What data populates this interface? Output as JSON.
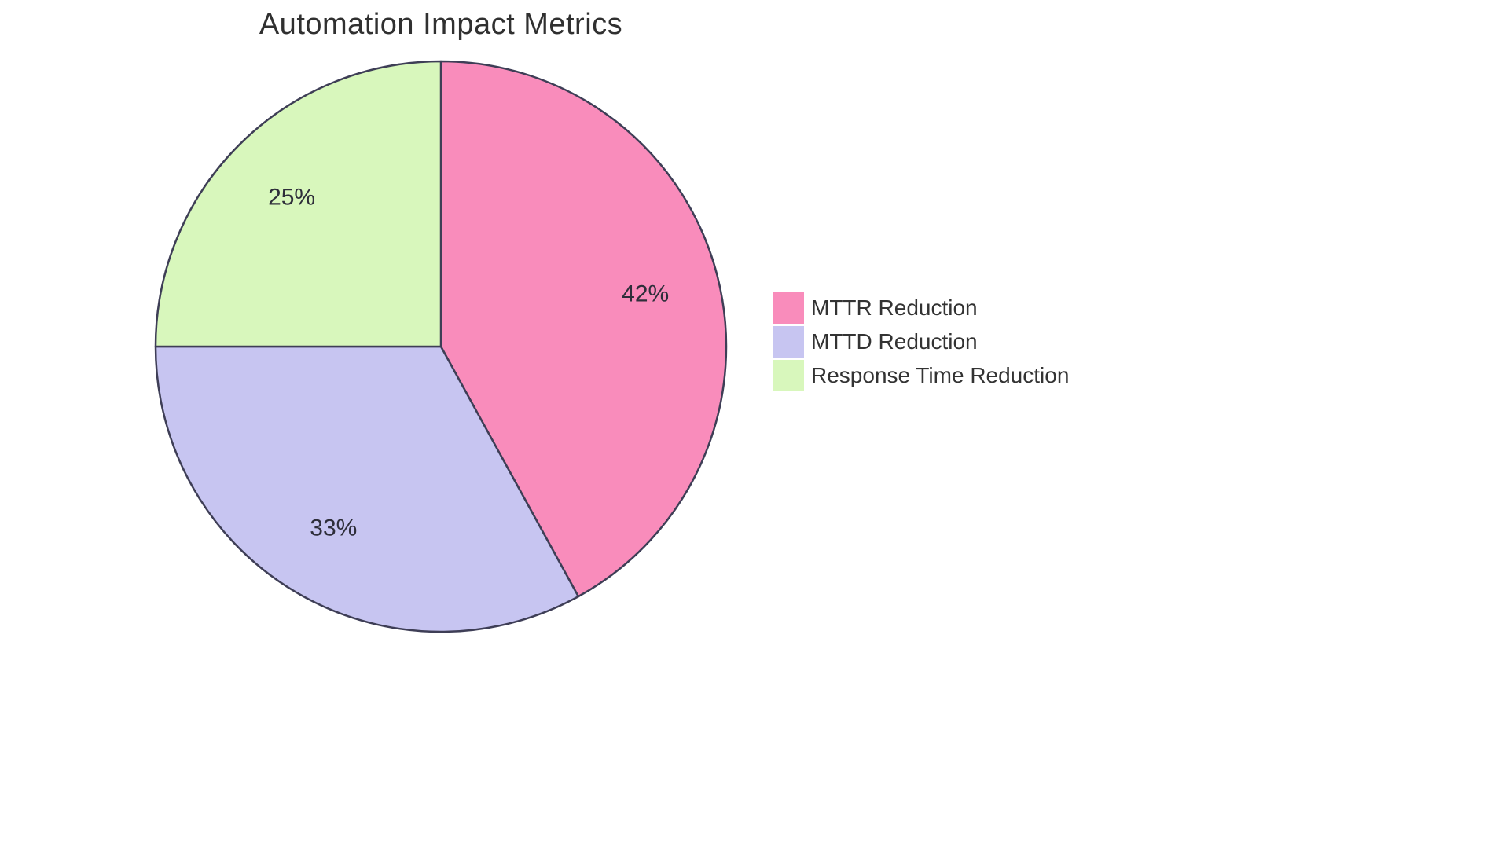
{
  "chart_data": {
    "type": "pie",
    "title": "Automation Impact Metrics",
    "series": [
      {
        "label": "MTTR Reduction",
        "value": 42,
        "display": "42%",
        "color": "#F98CBB"
      },
      {
        "label": "MTTD Reduction",
        "value": 33,
        "display": "33%",
        "color": "#C7C5F1"
      },
      {
        "label": "Response Time Reduction",
        "value": 25,
        "display": "25%",
        "color": "#D8F7BC"
      }
    ],
    "start_angle": "top",
    "direction": "clockwise",
    "legend_position": "right",
    "stroke_color": "#3E3E56",
    "stroke_width": 2.5,
    "label_color": "#2E2E3A",
    "title_color": "#303030",
    "background": "#FFFFFF"
  }
}
